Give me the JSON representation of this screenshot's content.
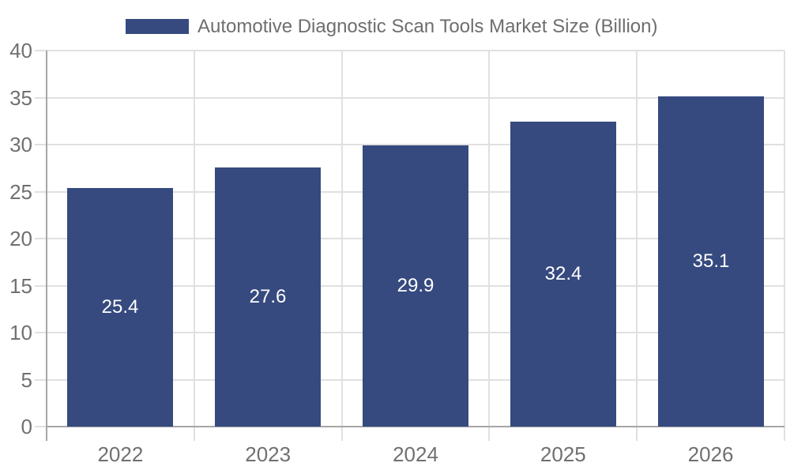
{
  "chart_data": {
    "type": "bar",
    "title": "Automotive Diagnostic Scan Tools Market Size (Billion)",
    "legend": {
      "label": "Automotive Diagnostic Scan Tools Market Size (Billion)",
      "position": "top"
    },
    "categories": [
      "2022",
      "2023",
      "2024",
      "2025",
      "2026"
    ],
    "values": [
      25.4,
      27.6,
      29.9,
      32.4,
      35.1
    ],
    "value_labels": [
      "25.4",
      "27.6",
      "29.9",
      "32.4",
      "35.1"
    ],
    "ylim": [
      0,
      40
    ],
    "ytick_step": 5,
    "yticks": [
      0,
      5,
      10,
      15,
      20,
      25,
      30,
      35,
      40
    ],
    "grid": true,
    "value_label_position": "inside-center",
    "colors": {
      "bar": "#364a7f",
      "grid": "#e0e0e0",
      "axis": "#a6a6a6",
      "tick_text": "#707070",
      "legend_text": "#6e6e6e",
      "value_text": "#ffffff",
      "background": "#ffffff"
    }
  }
}
